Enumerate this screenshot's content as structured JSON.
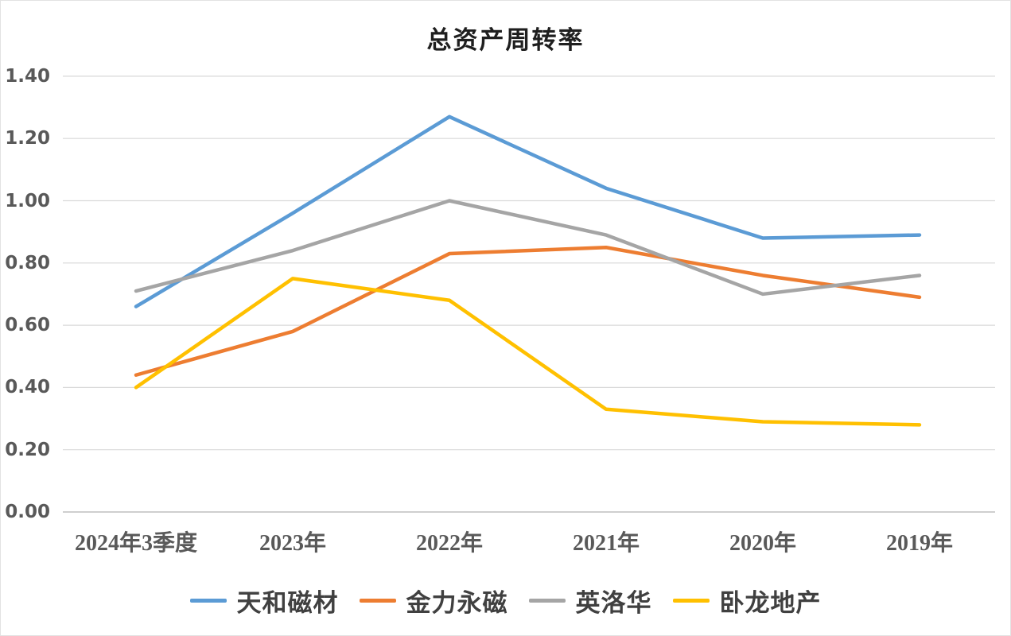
{
  "chart_data": {
    "type": "line",
    "title": "总资产周转率",
    "categories": [
      "2024年3季度",
      "2023年",
      "2022年",
      "2021年",
      "2020年",
      "2019年"
    ],
    "series": [
      {
        "name": "天和磁材",
        "color": "#5B9BD5",
        "values": [
          0.66,
          0.96,
          1.27,
          1.04,
          0.88,
          0.89
        ]
      },
      {
        "name": "金力永磁",
        "color": "#ED7D31",
        "values": [
          0.44,
          0.58,
          0.83,
          0.85,
          0.76,
          0.69
        ]
      },
      {
        "name": "英洛华",
        "color": "#A5A5A5",
        "values": [
          0.71,
          0.84,
          1.0,
          0.89,
          0.7,
          0.76
        ]
      },
      {
        "name": "卧龙地产",
        "color": "#FFC000",
        "values": [
          0.4,
          0.75,
          0.68,
          0.33,
          0.29,
          0.28
        ]
      }
    ],
    "ylim": [
      0.0,
      1.4
    ],
    "ytick_step": 0.2,
    "ytick_labels": [
      "0.00",
      "0.20",
      "0.40",
      "0.60",
      "0.80",
      "1.00",
      "1.20",
      "1.40"
    ],
    "xlabel": "",
    "ylabel": "",
    "grid": true,
    "legend_position": "bottom",
    "colors": {
      "gridline": "#D9D9D9",
      "axis_line": "#BFBFBF",
      "tick_text": "#595959",
      "title_text": "#1F1F1F",
      "legend_text": "#404040",
      "background": "#FFFFFF"
    }
  }
}
